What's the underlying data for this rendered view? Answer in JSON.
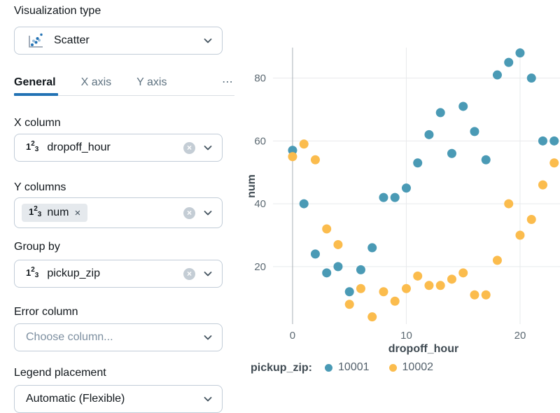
{
  "accent": {
    "blue": "#2272B4"
  },
  "panel": {
    "visualization_type": {
      "label": "Visualization type",
      "value": "Scatter"
    },
    "tabs": {
      "general": "General",
      "x_axis": "X axis",
      "y_axis": "Y axis",
      "overflow": "⋯"
    },
    "x_column": {
      "label": "X column",
      "value": "dropoff_hour"
    },
    "y_columns": {
      "label": "Y columns",
      "chip_value": "num",
      "chip_remove": "×"
    },
    "group_by": {
      "label": "Group by",
      "value": "pickup_zip"
    },
    "error_column": {
      "label": "Error column",
      "placeholder": "Choose column..."
    },
    "legend_placement": {
      "label": "Legend placement",
      "value": "Automatic (Flexible)"
    },
    "number_icon": {
      "d1": "1",
      "d2": "2",
      "d3": "3"
    },
    "clear_icon": "×"
  },
  "chart_data": {
    "type": "scatter",
    "xlabel": "dropoff_hour",
    "ylabel": "num",
    "legend_title": "pickup_zip:",
    "legend_position": "bottom",
    "grid": true,
    "x": [
      0,
      1,
      2,
      3,
      4,
      5,
      6,
      7,
      8,
      9,
      10,
      11,
      12,
      13,
      14,
      15,
      16,
      17,
      18,
      19,
      20,
      21,
      22,
      23
    ],
    "series": [
      {
        "name": "10001",
        "color": "#4A9AB5",
        "values": [
          57,
          40,
          24,
          18,
          20,
          12,
          19,
          26,
          42,
          42,
          45,
          53,
          62,
          69,
          56,
          71,
          63,
          54,
          81,
          85,
          88,
          80,
          60,
          60
        ]
      },
      {
        "name": "10002",
        "color": "#FBBC4D",
        "values": [
          55,
          59,
          54,
          32,
          27,
          8,
          13,
          4,
          12,
          9,
          13,
          17,
          14,
          14,
          16,
          18,
          11,
          11,
          22,
          40,
          30,
          35,
          46,
          53
        ]
      }
    ],
    "x_ticks": [
      0,
      10,
      20
    ],
    "y_ticks": [
      20,
      40,
      60,
      80
    ],
    "xlim": [
      -1.72,
      23.51
    ],
    "ylim": [
      1.7,
      89.7
    ]
  }
}
